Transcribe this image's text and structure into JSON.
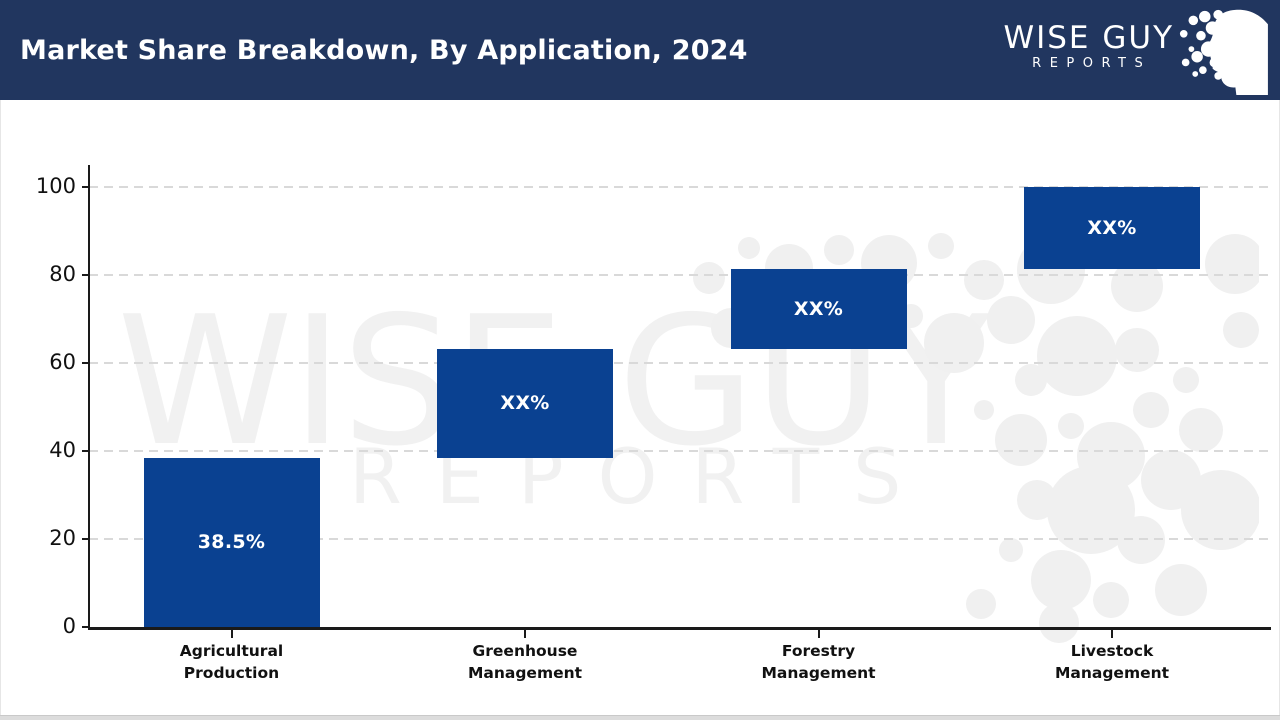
{
  "header": {
    "title": "Market Share Breakdown, By Application, 2024",
    "logo": {
      "name_line": "WISE GUY",
      "sub_line": "REPORTS"
    }
  },
  "watermark": {
    "name_line": "WISE GUY",
    "sub_line": "REPORTS"
  },
  "colors": {
    "header_bg": "#21365f",
    "header_text": "#ffffff",
    "bar_fill": "#0a4191",
    "bar_label_text": "#ffffff",
    "axis": "#1a1a1a",
    "tick_label": "#111111",
    "gridline": "#d9d9d9",
    "watermark": "#f1f1f1"
  },
  "chart_data": {
    "type": "bar",
    "subtype": "floating-waterfall",
    "title": "Market Share Breakdown, By Application, 2024",
    "unit": "%",
    "categories": [
      "Agricultural Production",
      "Greenhouse Management",
      "Forestry Management",
      "Livestock Management"
    ],
    "category_label_lines": [
      [
        "Agricultural",
        "Production"
      ],
      [
        "Greenhouse",
        "Management"
      ],
      [
        "Forestry",
        "Management"
      ],
      [
        "Livestock",
        "Management"
      ]
    ],
    "series": [
      {
        "name": "Market share",
        "segments": [
          {
            "category": "Agricultural Production",
            "start": 0,
            "end": 38.5,
            "label": "38.5%"
          },
          {
            "category": "Greenhouse Management",
            "start": 38.5,
            "end": 63.2,
            "label": "XX%"
          },
          {
            "category": "Forestry Management",
            "start": 63.2,
            "end": 81.4,
            "label": "XX%"
          },
          {
            "category": "Livestock Management",
            "start": 81.4,
            "end": 100,
            "label": "XX%"
          }
        ]
      }
    ],
    "xlabel": "",
    "ylabel": "",
    "ylim": [
      0,
      100
    ],
    "yticks": [
      0,
      20,
      40,
      60,
      80,
      100
    ],
    "grid": "horizontal-dashed",
    "legend": "none"
  }
}
